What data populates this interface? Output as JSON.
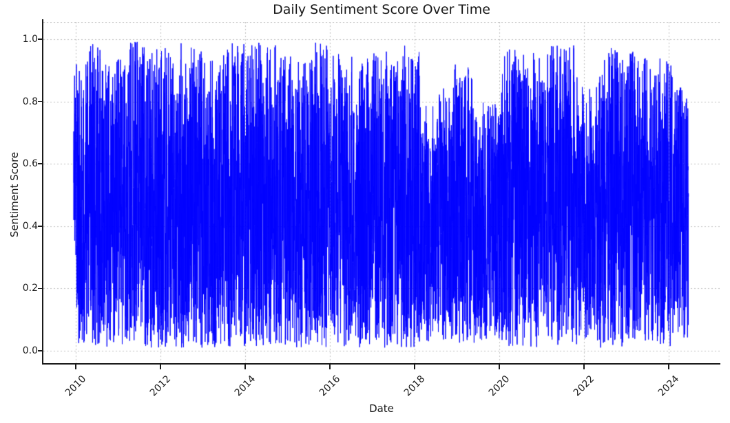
{
  "chart_data": {
    "type": "line",
    "title": "Daily Sentiment Score Over Time",
    "xlabel": "Date",
    "ylabel": "Sentiment Score",
    "x_tick_labels": [
      "2010",
      "2012",
      "2014",
      "2016",
      "2018",
      "2020",
      "2022",
      "2024"
    ],
    "x_tick_years": [
      2010,
      2012,
      2014,
      2016,
      2018,
      2020,
      2022,
      2024
    ],
    "y_tick_labels": [
      "0.0",
      "0.2",
      "0.4",
      "0.6",
      "0.8",
      "1.0"
    ],
    "y_tick_values": [
      0.0,
      0.2,
      0.4,
      0.6,
      0.8,
      1.0
    ],
    "xlim_years": [
      2009.236,
      2025.203
    ],
    "ylim": [
      -0.0397,
      1.055
    ],
    "grid": {
      "visible": true,
      "style": "dashed",
      "color": "#bdbdbd"
    },
    "background_color": "#ffffff",
    "spine_color": "#1a1a1a",
    "text_color": "#1c1c1c",
    "legend": "none",
    "series": [
      {
        "name": "Daily Sentiment Score",
        "color": "#0000ff",
        "line_width": 1,
        "sampling": "daily",
        "points_per_year": 365,
        "x_start_year": 2009.95,
        "x_end_year": 2024.47,
        "seed": 1337,
        "distribution": "uniform-noise",
        "envelope_segments": [
          {
            "from": 2009.95,
            "to": 2010.02,
            "min": 0.3,
            "max": 0.95
          },
          {
            "from": 2010.02,
            "to": 2018.12,
            "min": 0.01,
            "max": 1.0
          },
          {
            "from": 2018.12,
            "to": 2018.88,
            "min": 0.03,
            "max": 0.85
          },
          {
            "from": 2018.88,
            "to": 2019.42,
            "min": 0.02,
            "max": 0.93
          },
          {
            "from": 2019.42,
            "to": 2020.05,
            "min": 0.03,
            "max": 0.82
          },
          {
            "from": 2020.05,
            "to": 2021.85,
            "min": 0.01,
            "max": 0.99
          },
          {
            "from": 2021.85,
            "to": 2022.35,
            "min": 0.03,
            "max": 0.9
          },
          {
            "from": 2022.35,
            "to": 2024.1,
            "min": 0.01,
            "max": 0.99
          },
          {
            "from": 2024.1,
            "to": 2024.47,
            "min": 0.04,
            "max": 0.9
          }
        ]
      }
    ]
  }
}
